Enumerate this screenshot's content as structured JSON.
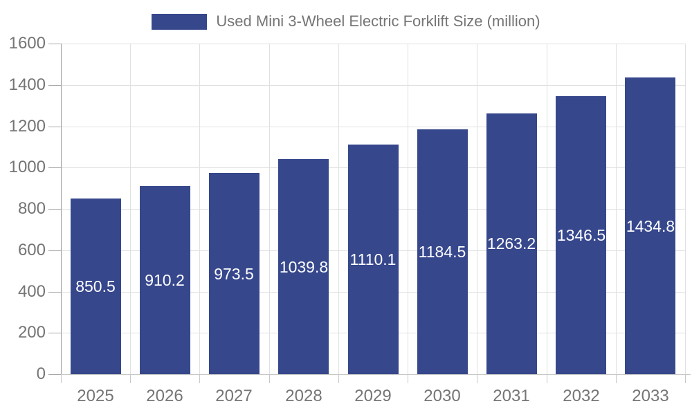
{
  "legend": {
    "label": "Used Mini 3-Wheel Electric Forklift Size (million)"
  },
  "colors": {
    "bar": "#36478C",
    "grid": "#e0e0e0",
    "axis_line": "#9e9e9e",
    "baseline": "#c8c8c8",
    "ytick": "#a8a8a8",
    "xtick": "#c8c8c8",
    "text": "#757575",
    "value_label_text": "#ffffff",
    "background": "#ffffff"
  },
  "chart_data": {
    "type": "bar",
    "title": "Used Mini 3-Wheel Electric Forklift Size (million)",
    "legend_position": "top",
    "grid": true,
    "categories": [
      "2025",
      "2026",
      "2027",
      "2028",
      "2029",
      "2030",
      "2031",
      "2032",
      "2033"
    ],
    "values": [
      850.5,
      910.2,
      973.5,
      1039.8,
      1110.1,
      1184.5,
      1263.2,
      1346.5,
      1434.8
    ],
    "value_labels": [
      "850.5",
      "910.2",
      "973.5",
      "1039.8",
      "1110.1",
      "1184.5",
      "1263.2",
      "1346.5",
      "1434.8"
    ],
    "xlabel": "",
    "ylabel": "",
    "ylim": [
      0,
      1600
    ],
    "yticks": [
      0,
      200,
      400,
      600,
      800,
      1000,
      1200,
      1400,
      1600
    ]
  }
}
